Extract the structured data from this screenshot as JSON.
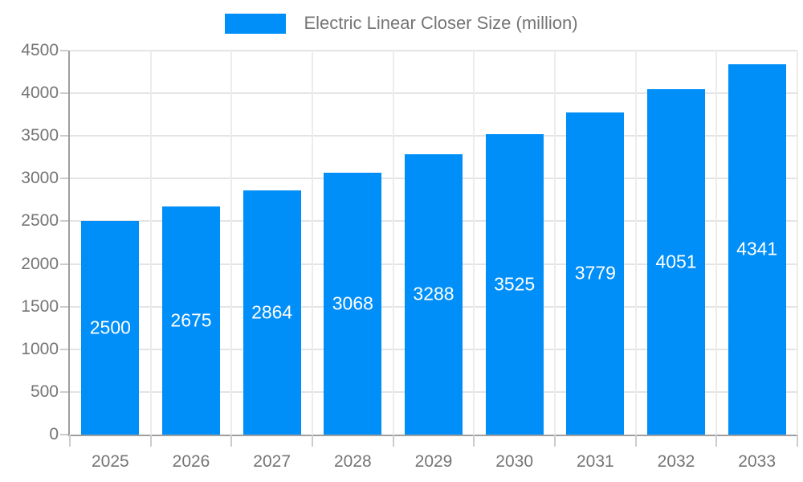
{
  "legend": {
    "label": "Electric Linear Closer Size (million)"
  },
  "colors": {
    "bar": "#008FF8",
    "bar_label": "#ffffff",
    "tick_text": "#757575",
    "axis_line": "#9e9e9e",
    "gridline": "#e4e4e4"
  },
  "chart_data": {
    "type": "bar",
    "title": "",
    "legend_entries": [
      "Electric Linear Closer Size (million)"
    ],
    "legend_position": "top-center",
    "categories": [
      "2025",
      "2026",
      "2027",
      "2028",
      "2029",
      "2030",
      "2031",
      "2032",
      "2033"
    ],
    "series": [
      {
        "name": "Electric Linear Closer Size (million)",
        "values": [
          2500,
          2675,
          2864,
          3068,
          3288,
          3525,
          3779,
          4051,
          4341
        ]
      }
    ],
    "value_labels": [
      "2500",
      "2675",
      "2864",
      "3068",
      "3288",
      "3525",
      "3779",
      "4051",
      "4341"
    ],
    "value_labels_position": "inside-center",
    "xlabel": "",
    "ylabel": "",
    "ylim": [
      0,
      4500
    ],
    "y_ticks": [
      0,
      500,
      1000,
      1500,
      2000,
      2500,
      3000,
      3500,
      4000,
      4500
    ],
    "y_tick_labels": [
      "0",
      "500",
      "1000",
      "1500",
      "2000",
      "2500",
      "3000",
      "3500",
      "4000",
      "4500"
    ],
    "grid": true
  }
}
